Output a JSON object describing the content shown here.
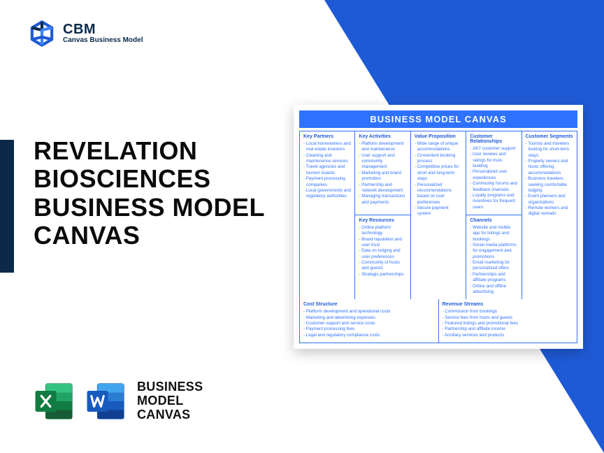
{
  "logo": {
    "brand": "CBM",
    "sub": "Canvas Business Model"
  },
  "title": "REVELATION BIOSCIENCES BUSINESS MODEL CANVAS",
  "format_label": "BUSINESS\nMODEL\nCANVAS",
  "colors": {
    "accent_blue": "#1f5ad6",
    "dark_navy": "#0b2a4a",
    "canvas_header": "#2f72ff",
    "excel_dark": "#107c41",
    "excel_light": "#21a366",
    "word_dark": "#185abd",
    "word_light": "#41a5ee"
  },
  "canvas": {
    "title": "BUSINESS MODEL CANVAS",
    "sections": {
      "key_partners": {
        "header": "Key Partners",
        "items": [
          "Local homeowners and real estate investors",
          "Cleaning and maintenance services",
          "Travel agencies and tourism boards",
          "Payment processing companies",
          "Local governments and regulatory authorities"
        ]
      },
      "key_activities": {
        "header": "Key Activities",
        "items": [
          "Platform development and maintenance",
          "User support and community management",
          "Marketing and brand promotion",
          "Partnership and network development",
          "Managing transactions and payments"
        ]
      },
      "value_proposition": {
        "header": "Value Proposition",
        "items": [
          "Wide range of unique accommodations",
          "Convenient booking process",
          "Competitive prices for short and long-term stays",
          "Personalized recommendations based on user preferences",
          "Secure payment system"
        ]
      },
      "customer_relationships": {
        "header": "Customer Relationships",
        "items": [
          "24/7 customer support",
          "User reviews and ratings for trust-building",
          "Personalized user experiences",
          "Community forums and feedback channels",
          "Loyalty programs and incentives for frequent users"
        ]
      },
      "customer_segments": {
        "header": "Customer Segments",
        "items": [
          "Tourists and travelers looking for short-term stays",
          "Property owners and hosts offering accommodations",
          "Business travelers seeking comfortable lodging",
          "Event planners and organizations",
          "Remote workers and digital nomads"
        ]
      },
      "key_resources": {
        "header": "Key Resources",
        "items": [
          "Online platform technology",
          "Brand reputation and user trust",
          "Data on lodging and user preferences",
          "Community of hosts and guests",
          "Strategic partnerships"
        ]
      },
      "channels": {
        "header": "Channels",
        "items": [
          "Website and mobile app for listings and bookings",
          "Social media platforms for engagement and promotions",
          "Email marketing for personalized offers",
          "Partnerships and affiliate programs",
          "Online and offline advertising"
        ]
      },
      "cost_structure": {
        "header": "Cost Structure",
        "items": [
          "Platform development and operational costs",
          "Marketing and advertising expenses",
          "Customer support and service costs",
          "Payment processing fees",
          "Legal and regulatory compliance costs"
        ]
      },
      "revenue_streams": {
        "header": "Revenue Streams",
        "items": [
          "Commission from bookings",
          "Service fees from hosts and guests",
          "Featured listings and promotional fees",
          "Partnership and affiliate income",
          "Ancillary services and products"
        ]
      }
    }
  }
}
